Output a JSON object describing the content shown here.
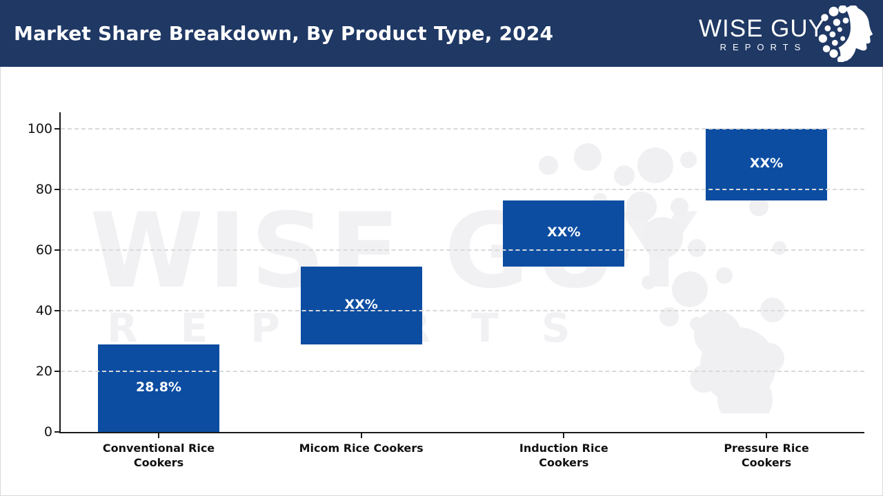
{
  "header": {
    "title": "Market Share Breakdown, By Product Type, 2024",
    "logo": {
      "name": "WISE GUY",
      "sub": "REPORTS"
    }
  },
  "watermark": {
    "line1": "WISE GUY",
    "line2": "REPORTS"
  },
  "chart_data": {
    "type": "bar",
    "subtype": "stacked-waterfall-floating-bars",
    "title": "Market Share Breakdown, By Product Type, 2024",
    "categories": [
      "Conventional Rice Cookers",
      "Micom Rice Cookers",
      "Induction Rice Cookers",
      "Pressure Rice Cookers"
    ],
    "category_label_lines": [
      [
        "Conventional Rice",
        "Cookers"
      ],
      [
        "Micom Rice Cookers"
      ],
      [
        "Induction Rice",
        "Cookers"
      ],
      [
        "Pressure Rice",
        "Cookers"
      ]
    ],
    "segments": [
      {
        "category": "Conventional Rice Cookers",
        "start": 0,
        "end": 28.8,
        "label": "28.8%"
      },
      {
        "category": "Micom Rice Cookers",
        "start": 28.8,
        "end": 54.6,
        "label": "XX%"
      },
      {
        "category": "Induction Rice Cookers",
        "start": 54.6,
        "end": 76.4,
        "label": "XX%"
      },
      {
        "category": "Pressure Rice Cookers",
        "start": 76.4,
        "end": 100,
        "label": "XX%"
      }
    ],
    "yticks": [
      0,
      20,
      40,
      60,
      80,
      100
    ],
    "ylim": [
      0,
      105
    ],
    "xlabel": "",
    "ylabel": "",
    "grid": {
      "axis": "y",
      "style": "dashed",
      "on_top": true
    },
    "legend": null,
    "colors": {
      "bar": "#0c4da2",
      "header_bg": "#1f3864",
      "axis": "#1a1a1a",
      "gridline": "#d9d9d9",
      "bar_label_text": "#ffffff",
      "tick_text": "#111111",
      "watermark": "#f1f1f3"
    }
  }
}
